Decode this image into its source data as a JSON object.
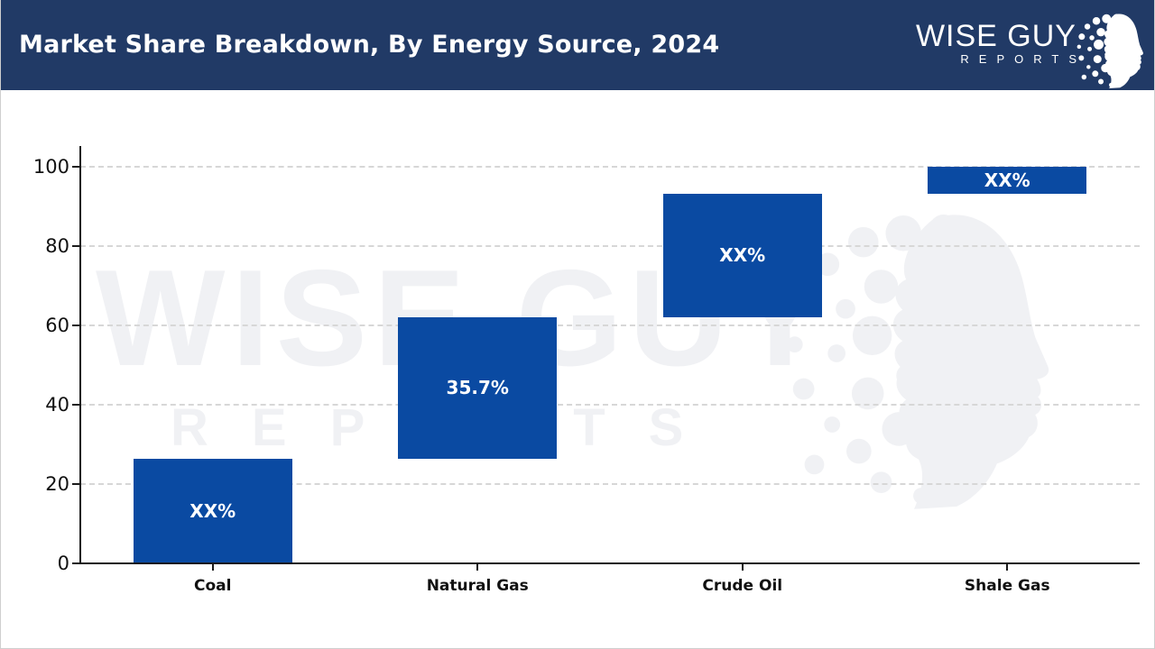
{
  "header": {
    "title": "Market Share Breakdown, By Energy Source, 2024",
    "logo": {
      "name_top": "WISE GUY",
      "name_bottom": "REPORTS"
    }
  },
  "watermark": {
    "line1": "WISE GUY",
    "line2": "REPORTS"
  },
  "chart_data": {
    "type": "bar",
    "subtype": "waterfall",
    "title": "Market Share Breakdown, By Energy Source, 2024",
    "categories": [
      "Coal",
      "Natural Gas",
      "Crude Oil",
      "Shale Gas"
    ],
    "bars": [
      {
        "category": "Coal",
        "start": 0,
        "end": 26.4,
        "value": "XX",
        "value_label": "XX%"
      },
      {
        "category": "Natural Gas",
        "start": 26.4,
        "end": 62.1,
        "value": 35.7,
        "value_label": "35.7%"
      },
      {
        "category": "Crude Oil",
        "start": 62.1,
        "end": 93.2,
        "value": "XX",
        "value_label": "XX%"
      },
      {
        "category": "Shale Gas",
        "start": 93.2,
        "end": 100,
        "value": "XX",
        "value_label": "XX%"
      }
    ],
    "yticks": [
      0,
      20,
      40,
      60,
      80,
      100
    ],
    "ylim": [
      0,
      105
    ],
    "xlabel": "",
    "ylabel": "",
    "grid": "horizontal-dashed",
    "legend": "none",
    "colors": {
      "bar": "#0a4aa2",
      "bar_label": "#ffffff",
      "grid": "#d7d7d7",
      "axis": "#1a1a1a",
      "header_bg": "#213a66",
      "watermark": "#f0f1f4"
    }
  }
}
